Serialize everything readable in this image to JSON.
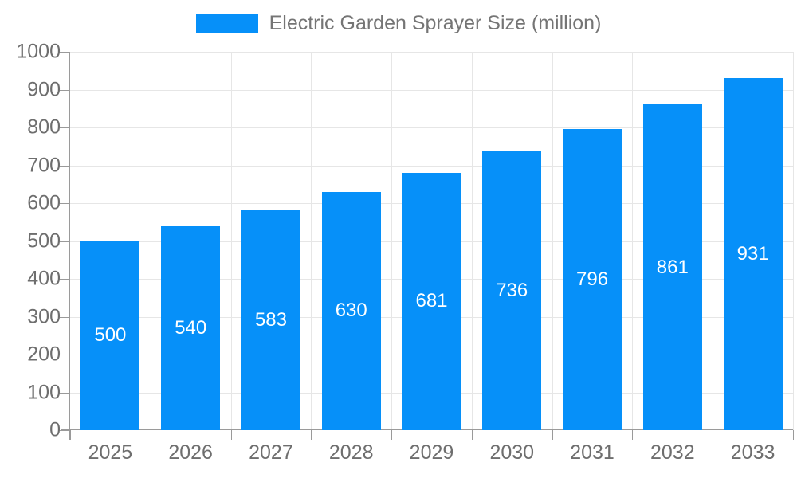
{
  "chart_data": {
    "type": "bar",
    "title": "Electric Garden Sprayer Size (million)",
    "categories": [
      "2025",
      "2026",
      "2027",
      "2028",
      "2029",
      "2030",
      "2031",
      "2032",
      "2033"
    ],
    "values": [
      500,
      540,
      583,
      630,
      681,
      736,
      796,
      861,
      931
    ],
    "xlabel": "",
    "ylabel": "",
    "ylim": [
      0,
      1000
    ],
    "y_tick_step": 100,
    "y_tick_labels": [
      "0",
      "100",
      "200",
      "300",
      "400",
      "500",
      "600",
      "700",
      "800",
      "900",
      "1000"
    ],
    "grid": true,
    "legend_position": "top-center",
    "value_labels_inside_bars": true,
    "colors": {
      "bar": "#0690f9",
      "value_label": "#ffffff",
      "legend_text": "#757575",
      "axis_label": "#6e6e6e",
      "gridline": "#e6e6e6",
      "axis_line": "#9a9a9a"
    }
  }
}
